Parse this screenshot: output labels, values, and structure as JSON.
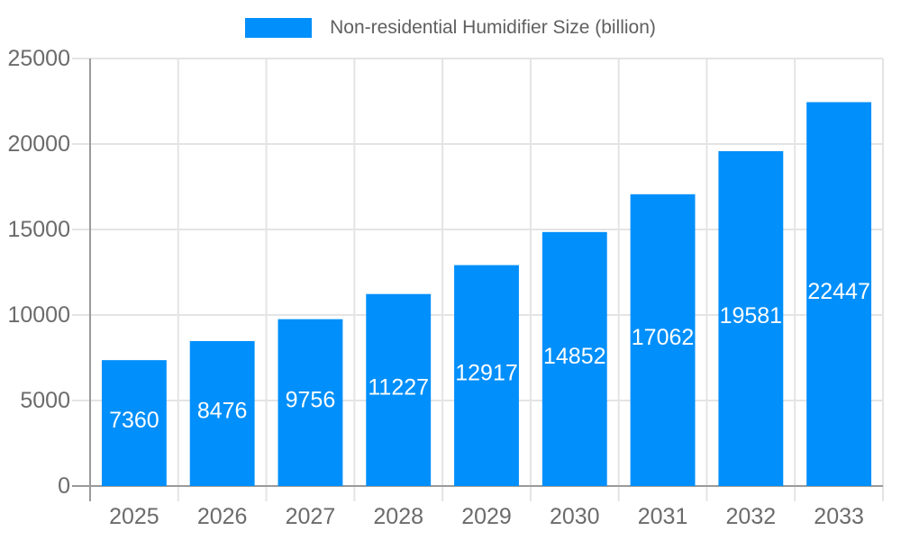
{
  "legend": {
    "label": "Non-residential Humidifier Size (billion)"
  },
  "chart_data": {
    "type": "bar",
    "title": "Non-residential Humidifier Size (billion)",
    "series": [
      {
        "name": "Non-residential Humidifier Size (billion)",
        "values": [
          7360,
          8476,
          9756,
          11227,
          12917,
          14852,
          17062,
          19581,
          22447
        ]
      }
    ],
    "categories": [
      "2025",
      "2026",
      "2027",
      "2028",
      "2029",
      "2030",
      "2031",
      "2032",
      "2033"
    ],
    "data_labels": [
      "7360",
      "8476",
      "9756",
      "11227",
      "12917",
      "14852",
      "17062",
      "19581",
      "22447"
    ],
    "xlabel": "",
    "ylabel": "",
    "ylim": [
      0,
      25000
    ],
    "ytick_step": 5000,
    "ytick_labels": [
      "0",
      "5000",
      "10000",
      "15000",
      "20000",
      "25000"
    ],
    "grid": "horizontal gridlines at y ticks, vertical gridlines at category boundaries",
    "legend_position": "top-center",
    "colors": {
      "bar": "#008FFB",
      "data_label_text": "#ffffff",
      "axis_text": "#6b6b6b",
      "grid_line": "#e4e4e4",
      "axis_line": "#9a9a9a",
      "legend_text": "#5f5f5f",
      "background": "#ffffff"
    }
  }
}
